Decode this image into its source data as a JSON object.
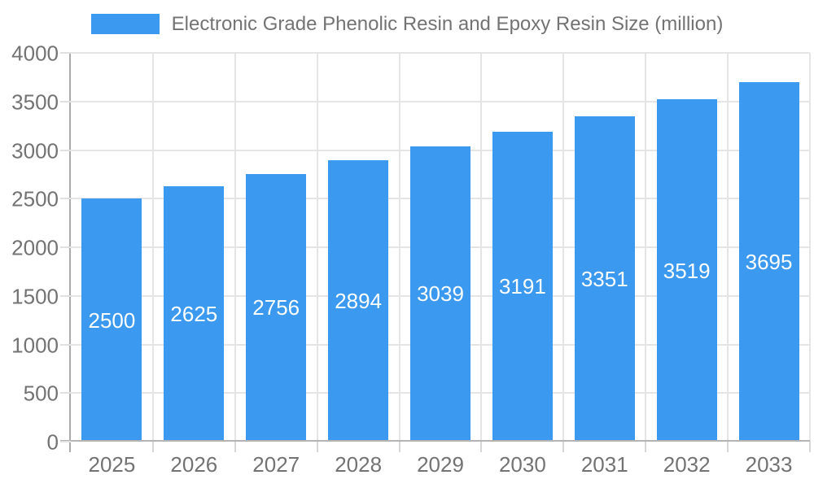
{
  "chart_data": {
    "type": "bar",
    "title": "Electronic Grade Phenolic Resin and Epoxy Resin Size (million)",
    "legend": [
      "Electronic Grade Phenolic Resin and Epoxy Resin Size (million)"
    ],
    "legend_position": "top-center",
    "categories": [
      "2025",
      "2026",
      "2027",
      "2028",
      "2029",
      "2030",
      "2031",
      "2032",
      "2033"
    ],
    "values": [
      2500,
      2625,
      2756,
      2894,
      3039,
      3191,
      3351,
      3519,
      3695
    ],
    "xlabel": "",
    "ylabel": "",
    "ylim": [
      0,
      4000
    ],
    "yticks": [
      0,
      500,
      1000,
      1500,
      2000,
      2500,
      3000,
      3500,
      4000
    ],
    "grid": true,
    "colors": {
      "bar": "#3b99ef",
      "value_label": "#ffffff",
      "axis_label": "#737373",
      "grid_line": "#e5e5e5",
      "axis_line": "#b0b0b0",
      "background": "#ffffff"
    }
  }
}
